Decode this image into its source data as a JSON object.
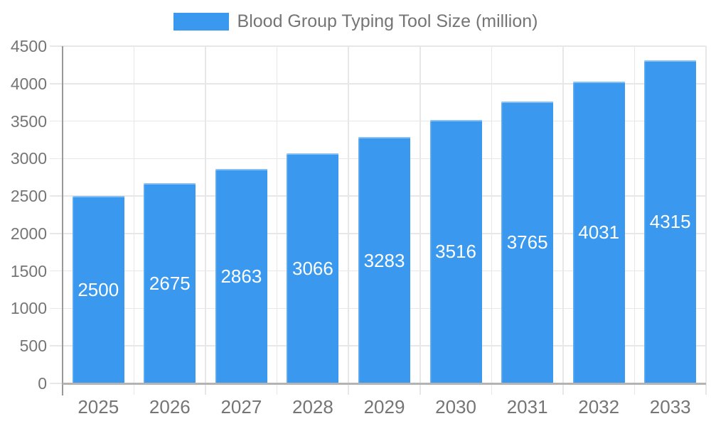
{
  "legend": {
    "label": "Blood Group Typing Tool Size (million)"
  },
  "chart_data": {
    "type": "bar",
    "title": "Blood Group Typing Tool Size (million)",
    "categories": [
      "2025",
      "2026",
      "2027",
      "2028",
      "2029",
      "2030",
      "2031",
      "2032",
      "2033"
    ],
    "values": [
      2500,
      2675,
      2863,
      3066,
      3283,
      3516,
      3765,
      4031,
      4315
    ],
    "series": [
      {
        "name": "Blood Group Typing Tool Size (million)",
        "values": [
          2500,
          2675,
          2863,
          3066,
          3283,
          3516,
          3765,
          4031,
          4315
        ]
      }
    ],
    "xlabel": "",
    "ylabel": "",
    "ylim": [
      0,
      4500
    ],
    "ytick_interval": 500,
    "y_tick_labels": [
      "0",
      "500",
      "1000",
      "1500",
      "2000",
      "2500",
      "3000",
      "3500",
      "4000",
      "4500"
    ],
    "grid": true,
    "value_labels_shown": true,
    "legend_position": "top",
    "colors": {
      "bar": "#3A99EE",
      "grid": "#e7e7e7",
      "y_axis": "#999999",
      "baseline": "#b3b3b3",
      "axis_text": "#757575",
      "value_text": "#ffffff",
      "background": "#ffffff"
    }
  }
}
